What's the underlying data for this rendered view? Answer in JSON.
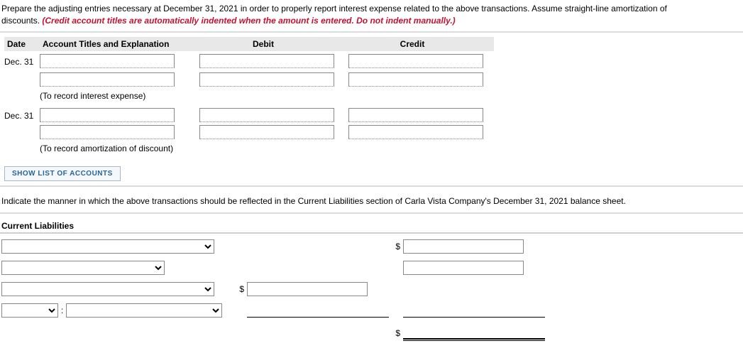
{
  "instructions": {
    "line1": "Prepare the adjusting entries necessary at December 31, 2021 in order to properly report interest expense related to the above transactions. Assume straight-line amortization of",
    "line2a": "discounts. ",
    "line2b": "(Credit account titles are automatically indented when the amount is entered. Do not indent manually.)"
  },
  "je": {
    "headers": {
      "date": "Date",
      "acct": "Account Titles and Explanation",
      "debit": "Debit",
      "credit": "Credit"
    },
    "entries": [
      {
        "date": "Dec. 31",
        "lines": [
          {
            "acct": "",
            "debit": "",
            "credit": ""
          },
          {
            "acct": "",
            "debit": "",
            "credit": ""
          }
        ],
        "note": "(To record interest expense)"
      },
      {
        "date": "Dec. 31",
        "lines": [
          {
            "acct": "",
            "debit": "",
            "credit": ""
          },
          {
            "acct": "",
            "debit": "",
            "credit": ""
          }
        ],
        "note": "(To record amortization of discount)"
      }
    ]
  },
  "showListLabel": "SHOW LIST OF ACCOUNTS",
  "indicate": "Indicate the manner in which the above transactions should be reflected in the Current Liabilities section of Carla Vista Company's December 31, 2021 balance sheet.",
  "cl": {
    "heading": "Current Liabilities",
    "dollar": "$",
    "colon": ":",
    "rows": {
      "r1": {
        "select": "",
        "col2": null,
        "amount": ""
      },
      "r2": {
        "select": "",
        "col2": null,
        "amount": ""
      },
      "r3": {
        "select": "",
        "col2": "",
        "amount": ""
      },
      "r4": {
        "select1": "",
        "select2": "",
        "col2_under": "",
        "amount_under": ""
      },
      "r5": {
        "total": ""
      }
    }
  }
}
